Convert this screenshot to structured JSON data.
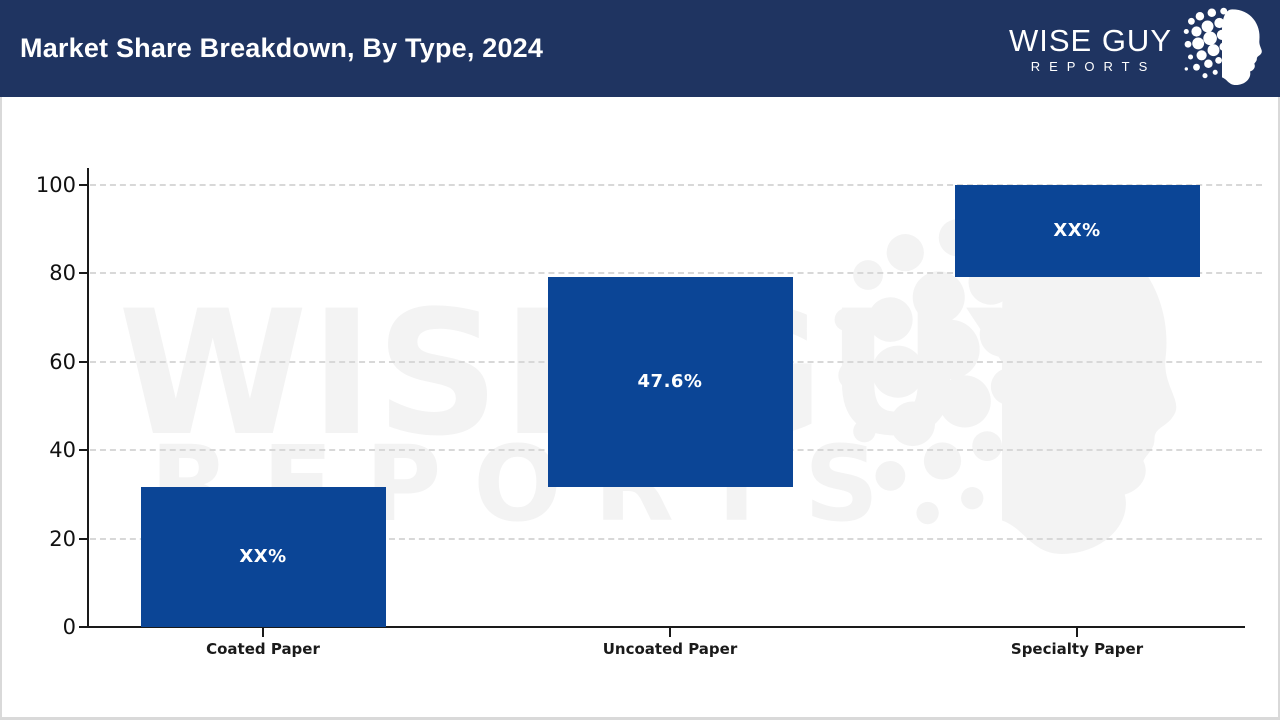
{
  "header": {
    "title": "Market Share Breakdown, By Type, 2024",
    "logo": {
      "line1": "WISE GUY",
      "line2": "REPORTS"
    }
  },
  "watermark": {
    "line1": "WISE GUY",
    "line2": "REPORTS"
  },
  "chart_data": {
    "type": "bar",
    "subtype": "waterfall",
    "title": "Market Share Breakdown, By Type, 2024",
    "categories": [
      "Coated Paper",
      "Uncoated Paper",
      "Specialty Paper"
    ],
    "segments": [
      {
        "category": "Coated Paper",
        "start": 0,
        "end": 31.6,
        "label": "XX%"
      },
      {
        "category": "Uncoated Paper",
        "start": 31.6,
        "end": 79.1,
        "label": "47.6%"
      },
      {
        "category": "Specialty Paper",
        "start": 79.1,
        "end": 100,
        "label": "XX%"
      }
    ],
    "xlabel": "",
    "ylabel": "",
    "ylim": [
      0,
      100
    ],
    "yticks": [
      0,
      20,
      40,
      60,
      80,
      100
    ],
    "grid": "horizontal-dashed",
    "legend": "none",
    "bar_color": "#0b4596",
    "colors": {
      "header_bg": "#1f3461",
      "axis": "#1a1a1a",
      "grid": "#d8d8d8",
      "watermark": "#f3f3f3"
    }
  }
}
